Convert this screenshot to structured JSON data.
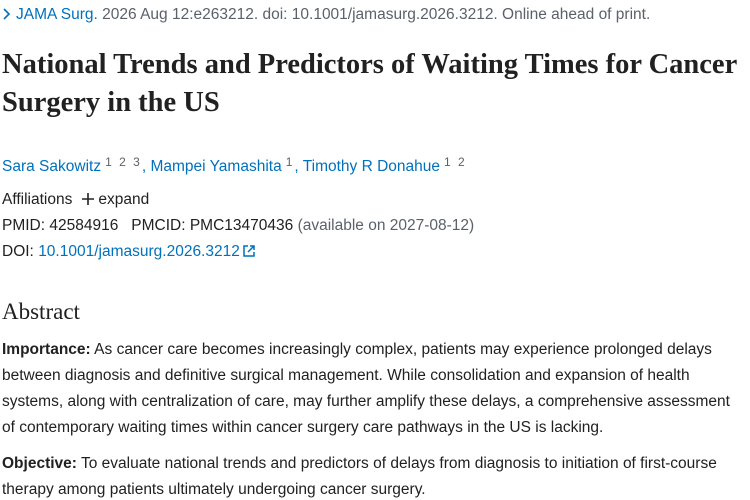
{
  "citation": {
    "journal": "JAMA Surg.",
    "details": "2026 Aug 12:e263212. doi: 10.1001/jamasurg.2026.3212. Online ahead of print."
  },
  "title": "National Trends and Predictors of Waiting Times for Cancer Surgery in the US",
  "authors": [
    {
      "name": "Sara Sakowitz",
      "affiliations": [
        "1",
        "2",
        "3"
      ]
    },
    {
      "name": "Mampei Yamashita",
      "affiliations": [
        "1"
      ]
    },
    {
      "name": "Timothy R Donahue",
      "affiliations": [
        "1",
        "2"
      ]
    }
  ],
  "affiliations": {
    "label": "Affiliations",
    "toggle": "expand"
  },
  "identifiers": {
    "pmid_label": "PMID:",
    "pmid": "42584916",
    "pmcid_label": "PMCID:",
    "pmcid": "PMC13470436",
    "pmcid_note": "(available on 2027-08-12)",
    "doi_label": "DOI:",
    "doi": "10.1001/jamasurg.2026.3212"
  },
  "abstract": {
    "heading": "Abstract",
    "sections": [
      {
        "label": "Importance:",
        "text": "As cancer care becomes increasingly complex, patients may experience prolonged delays between diagnosis and definitive surgical management. While consolidation and expansion of health systems, along with centralization of care, may further amplify these delays, a comprehensive assessment of contemporary waiting times within cancer surgery care pathways in the US is lacking."
      },
      {
        "label": "Objective:",
        "text": "To evaluate national trends and predictors of delays from diagnosis to initiation of first-course therapy among patients ultimately undergoing cancer surgery."
      }
    ]
  }
}
